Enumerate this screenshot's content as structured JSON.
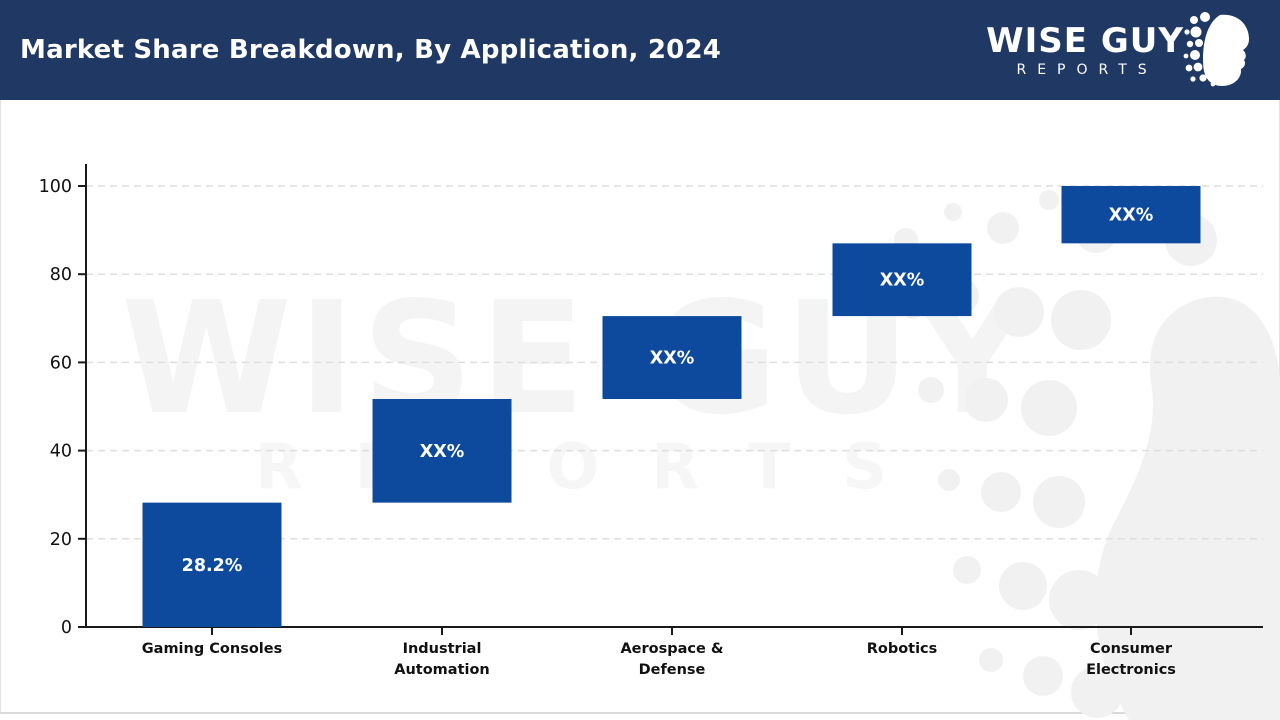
{
  "header": {
    "title": "Market Share Breakdown, By Application, 2024",
    "background_color": "#1f3864",
    "logo": {
      "line1": "WISE GUY",
      "line2": "REPORTS"
    }
  },
  "watermark": {
    "line1": "WISE GUY",
    "line2": "REPORTS"
  },
  "chart_data": {
    "type": "bar",
    "subtype": "waterfall",
    "title": "Market Share Breakdown, By Application, 2024",
    "categories": [
      "Gaming Consoles",
      "Industrial Automation",
      "Aerospace & Defense",
      "Robotics",
      "Consumer Electronics"
    ],
    "category_label_lines": [
      [
        "Gaming Consoles"
      ],
      [
        "Industrial",
        "Automation"
      ],
      [
        "Aerospace &",
        "Defense"
      ],
      [
        "Robotics"
      ],
      [
        "Consumer",
        "Electronics"
      ]
    ],
    "values": [
      28.2,
      23.5,
      18.8,
      16.5,
      13.0
    ],
    "cumulative": [
      28.2,
      51.7,
      70.5,
      87.0,
      100.0
    ],
    "bar_labels": [
      "28.2%",
      "XX%",
      "XX%",
      "XX%",
      "XX%"
    ],
    "xlabel": "",
    "ylabel": "",
    "ylim": [
      0,
      100
    ],
    "yticks": [
      0,
      20,
      40,
      60,
      80,
      100
    ],
    "grid": "horizontal-dashed",
    "legend": "none",
    "bar_color": "#0d4a9e",
    "bar_label_color": "#ffffff",
    "gridline_color": "#dedede",
    "axis_color": "#1a1a1a"
  }
}
